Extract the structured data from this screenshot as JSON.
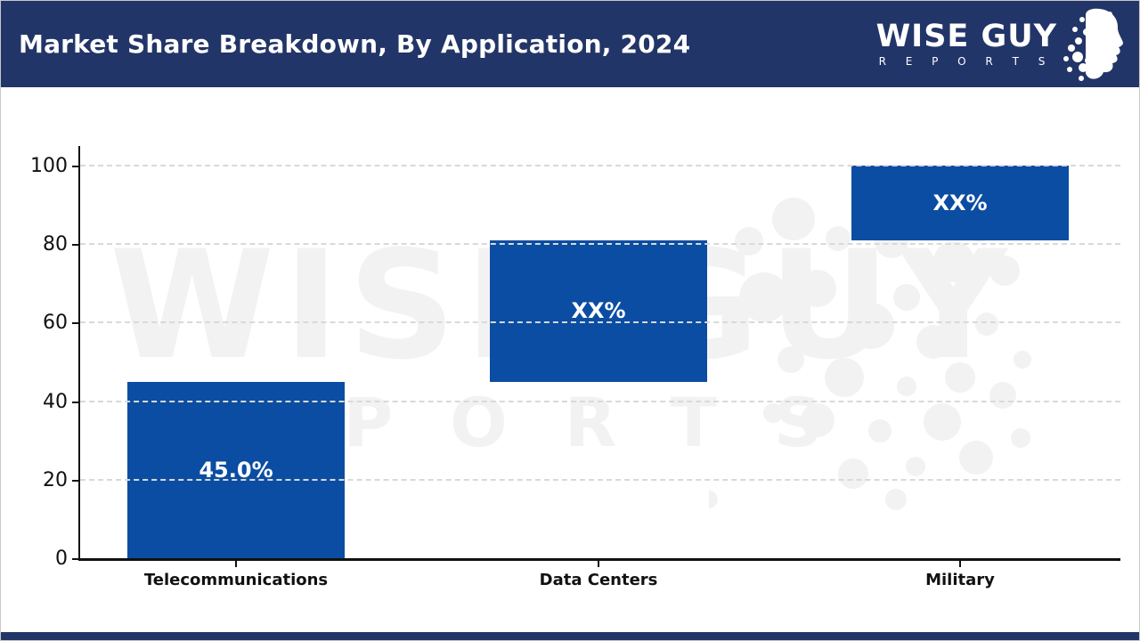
{
  "header": {
    "title": "Market Share Breakdown, By Application, 2024",
    "brand": {
      "line1": "WISE GUY",
      "line2": "R E P O R T S"
    }
  },
  "watermark": {
    "line1": "WISE GUY",
    "line2": "REPORTS"
  },
  "colors": {
    "header_bg": "#223568",
    "footer_bg": "#223568",
    "bar": "#0b4da2",
    "grid": "#d9d9d9",
    "watermark": "#f2f2f2",
    "axis_text": "#111111"
  },
  "chart_data": {
    "type": "bar",
    "subtype": "waterfall",
    "title": "Market Share Breakdown, By Application, 2024",
    "categories": [
      "Telecommunications",
      "Data Centers",
      "Military"
    ],
    "segments": [
      {
        "category": "Telecommunications",
        "start": 0,
        "end": 45,
        "label": "45.0%"
      },
      {
        "category": "Data Centers",
        "start": 45,
        "end": 81,
        "label": "XX%"
      },
      {
        "category": "Military",
        "start": 81,
        "end": 100,
        "label": "XX%"
      }
    ],
    "values_shown": [
      "45.0%",
      "XX%",
      "XX%"
    ],
    "xlabel": "",
    "ylabel": "",
    "yticks": [
      0,
      20,
      40,
      60,
      80,
      100
    ],
    "ylim": [
      0,
      105
    ],
    "grid": true,
    "legend": "none",
    "bar_color": "#0b4da2",
    "bar_label_color": "#ffffff"
  }
}
